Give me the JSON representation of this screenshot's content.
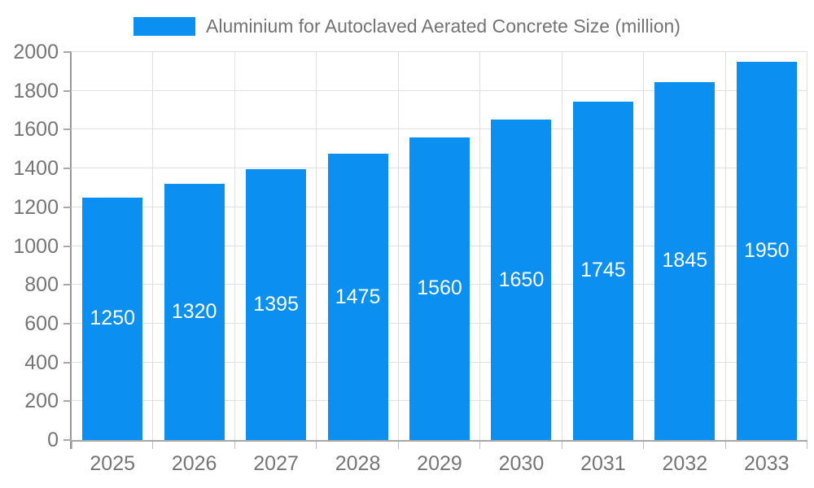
{
  "legend": {
    "label": "Aluminium for Autoclaved Aerated Concrete Size (million)",
    "swatch_color": "#0b90f1"
  },
  "colors": {
    "bar": "#0b90f1",
    "bar_label": "#ffffff",
    "axis_label": "#757575",
    "legend_text": "#737373",
    "grid_line": "#e0e0e0",
    "axis_line": "#a0a0a0",
    "background": "#ffffff"
  },
  "chart_data": {
    "type": "bar",
    "title": "Aluminium for Autoclaved Aerated Concrete Size (million)",
    "series_name": "Aluminium for Autoclaved Aerated Concrete Size (million)",
    "categories": [
      "2025",
      "2026",
      "2027",
      "2028",
      "2029",
      "2030",
      "2031",
      "2032",
      "2033"
    ],
    "values": [
      1250,
      1320,
      1395,
      1475,
      1560,
      1650,
      1745,
      1845,
      1950
    ],
    "xlabel": "",
    "ylabel": "",
    "ylim": [
      0,
      2000
    ],
    "yticks": [
      0,
      200,
      400,
      600,
      800,
      1000,
      1200,
      1400,
      1600,
      1800,
      2000
    ],
    "grid": true,
    "legend_position": "top",
    "bar_labels": "inside-center",
    "bar_color": "#0b90f1"
  }
}
